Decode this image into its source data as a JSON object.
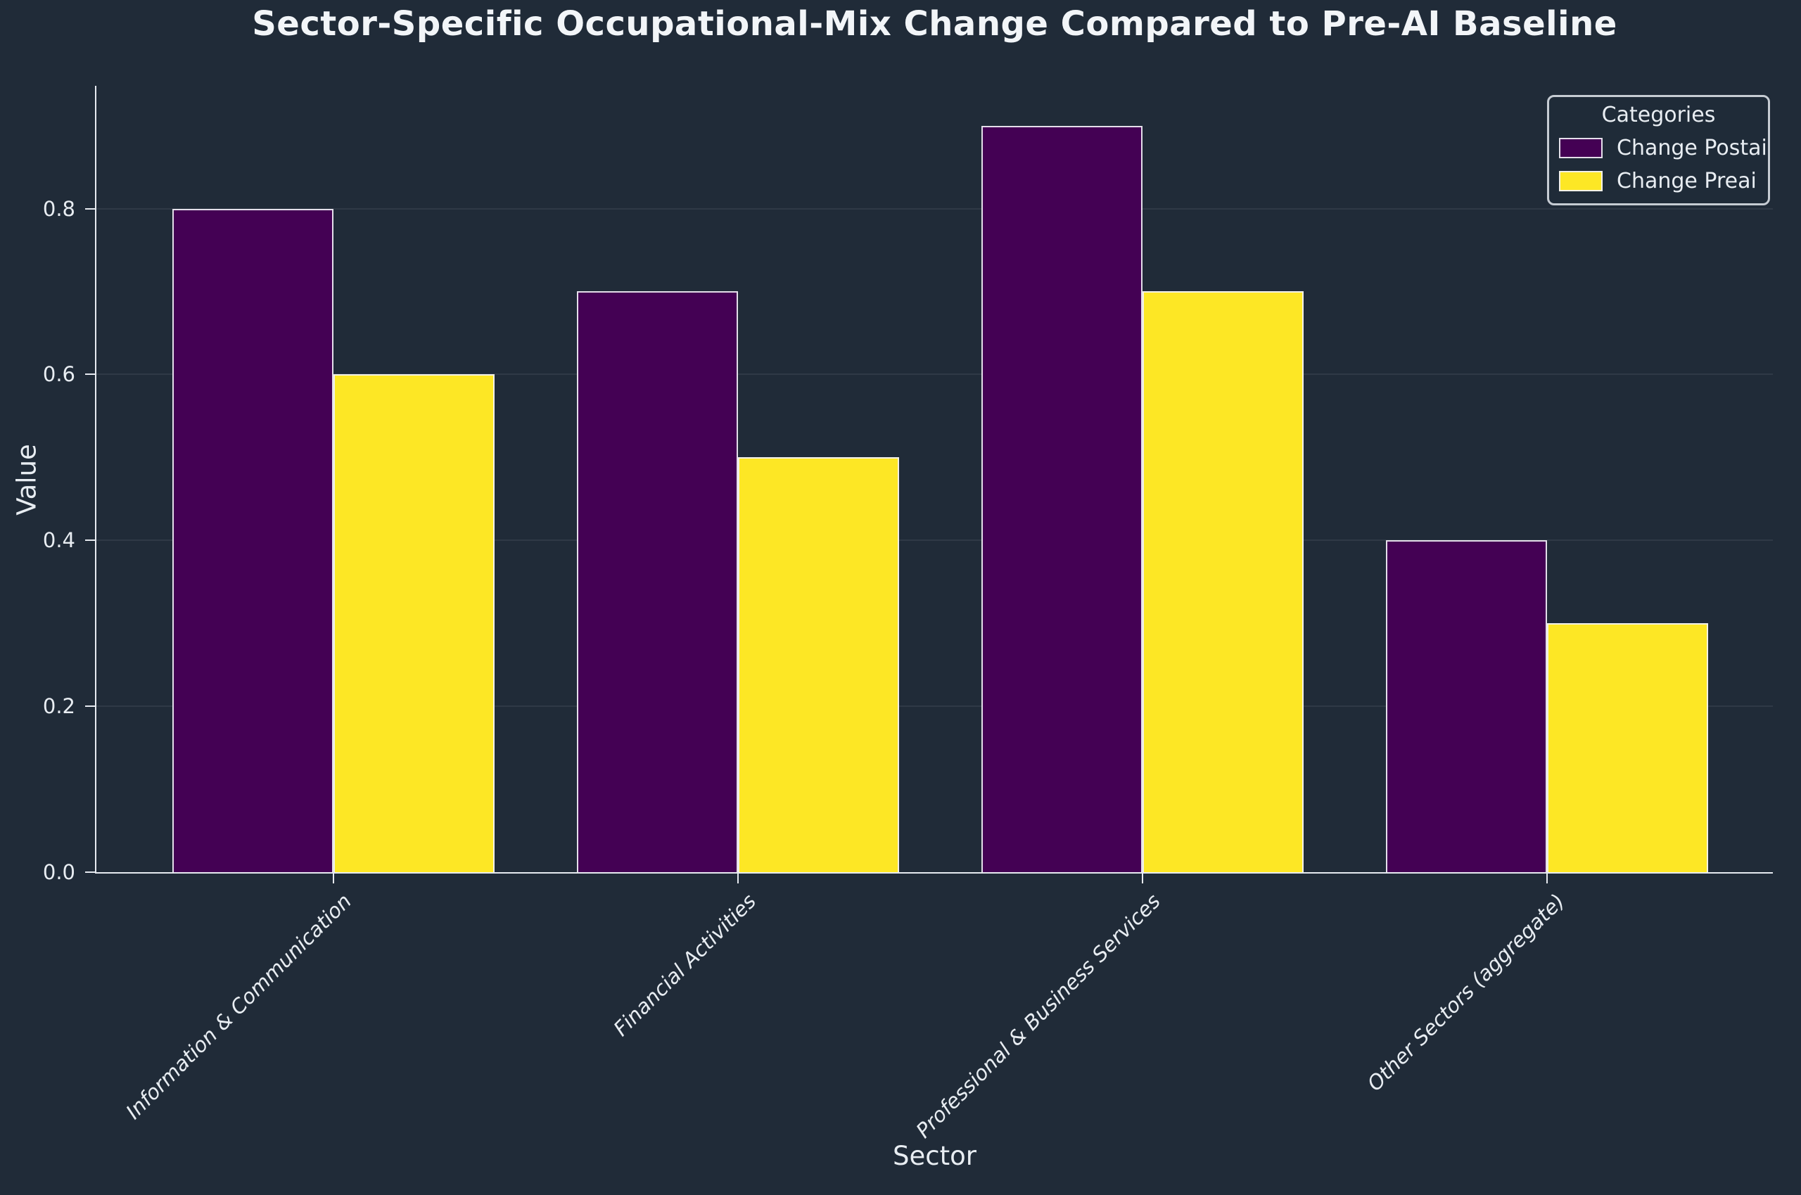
{
  "chart_data": {
    "type": "bar",
    "title": "Sector-Specific Occupational-Mix Change Compared to Pre-AI Baseline",
    "xlabel": "Sector",
    "ylabel": "Value",
    "categories": [
      "Information & Communication",
      "Financial Activities",
      "Professional & Business Services",
      "Other Sectors (aggregate)"
    ],
    "series": [
      {
        "name": "Change Postai",
        "color": "#440154",
        "values": [
          0.8,
          0.7,
          0.9,
          0.4
        ]
      },
      {
        "name": "Change Preai",
        "color": "#FDE725",
        "values": [
          0.6,
          0.5,
          0.7,
          0.3
        ]
      }
    ],
    "ylim": [
      0,
      0.948
    ],
    "yticks": [
      0,
      0.2,
      0.4,
      0.6,
      0.8
    ],
    "ytick_labels": [
      "0.0",
      "0.2",
      "0.4",
      "0.6",
      "0.8"
    ],
    "legend": {
      "title": "Categories",
      "position": "upper right"
    },
    "grid": "faint horizontal lines at y ticks",
    "colors": {
      "background": "#202B38",
      "text": "#E8EDF2",
      "spine": "#E6EAF0",
      "bar_edge": "#F2F2F7",
      "gridline": "rgba(255,255,255,0.07)",
      "legend_border": "#C6CCD3"
    }
  }
}
